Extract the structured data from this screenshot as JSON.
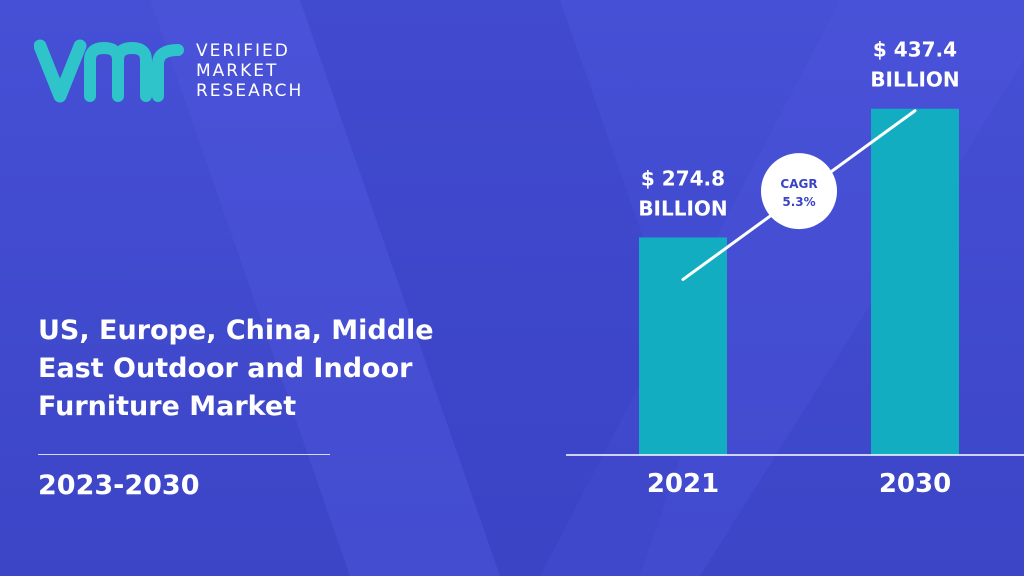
{
  "brand": {
    "line1": "VERIFIED",
    "line2": "MARKET",
    "line3": "RESEARCH",
    "accent_color": "#2ec4c9"
  },
  "title_lines": [
    "US, Europe, China, Middle",
    "East Outdoor and Indoor",
    "Furniture Market"
  ],
  "period": "2023-2030",
  "colors": {
    "background": "#4048cc",
    "bar": "#13adc1",
    "text": "#ffffff"
  },
  "chart_data": {
    "type": "bar",
    "categories": [
      "2021",
      "2030"
    ],
    "values": [
      274.8,
      437.4
    ],
    "value_labels": [
      [
        "$ 274.8",
        "BILLION"
      ],
      [
        "$ 437.4",
        "BILLION"
      ]
    ],
    "ylim": [
      0,
      480
    ],
    "grid": false,
    "annotation": {
      "line1": "CAGR",
      "line2": "5.3%"
    }
  }
}
